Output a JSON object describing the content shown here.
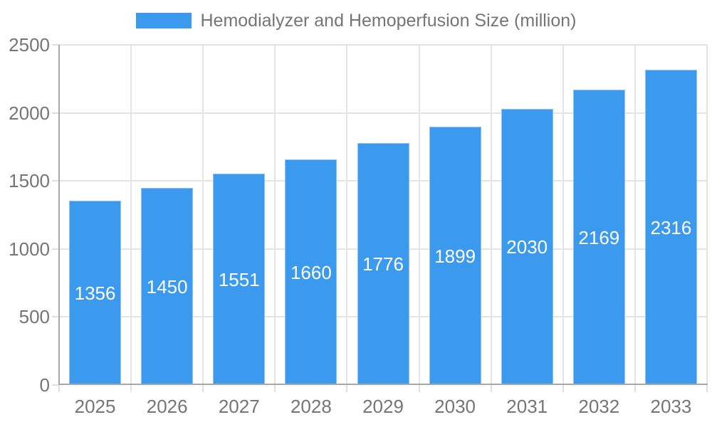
{
  "chart_data": {
    "type": "bar",
    "title": "Hemodialyzer and Hemoperfusion Size (million)",
    "categories": [
      "2025",
      "2026",
      "2027",
      "2028",
      "2029",
      "2030",
      "2031",
      "2032",
      "2033"
    ],
    "values": [
      1356,
      1450,
      1551,
      1660,
      1776,
      1899,
      2030,
      2169,
      2316
    ],
    "xlabel": "",
    "ylabel": "",
    "ylim": [
      0,
      2500
    ],
    "ytick_step": 500,
    "ytick_labels": [
      "0",
      "500",
      "1000",
      "1500",
      "2000",
      "2500"
    ],
    "grid": true,
    "legend_position": "top",
    "value_labels_inside_bars": true,
    "colors": {
      "bar_fill": "#3b99ee",
      "bar_border": "#8ec5f3",
      "value_label": "#ffffff",
      "axis_label": "#757575",
      "title_text": "#757575",
      "gridline": "#e4e4e4",
      "axis_line": "#a8a8a8",
      "tick": "#e0e0e0"
    }
  }
}
